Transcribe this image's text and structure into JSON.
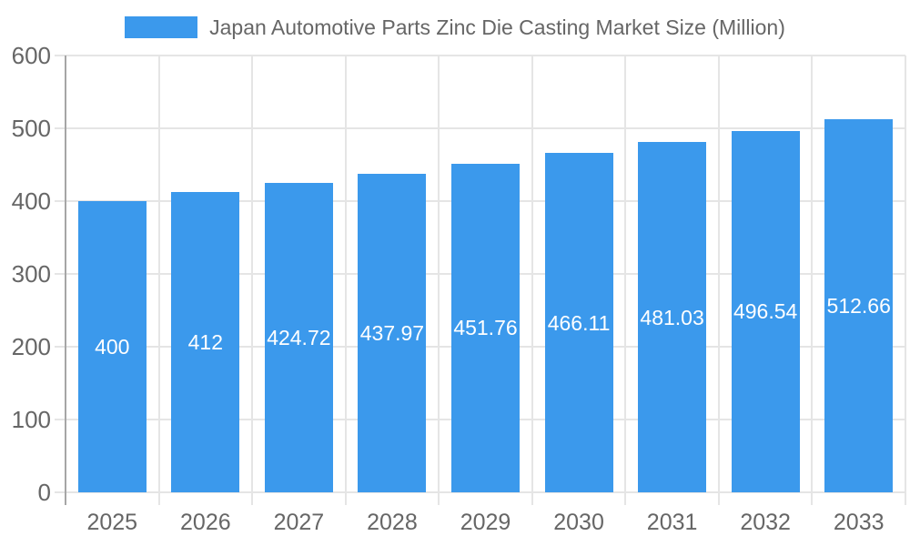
{
  "chart_data": {
    "type": "bar",
    "title": "Japan Automotive Parts Zinc Die Casting Market Size (Million)",
    "categories": [
      "2025",
      "2026",
      "2027",
      "2028",
      "2029",
      "2030",
      "2031",
      "2032",
      "2033"
    ],
    "values": [
      400,
      412,
      424.72,
      437.97,
      451.76,
      466.11,
      481.03,
      496.54,
      512.66
    ],
    "bar_value_labels": [
      "400",
      "412",
      "424.72",
      "437.97",
      "451.76",
      "466.11",
      "481.03",
      "496.54",
      "512.66"
    ],
    "xlabel": "",
    "ylabel": "",
    "ylim": [
      0,
      600
    ],
    "ytick_step": 100,
    "ytick_labels": [
      "0",
      "100",
      "200",
      "300",
      "400",
      "500",
      "600"
    ],
    "grid": "on",
    "legend_position": "top-center",
    "colors": {
      "bar": "#3B99EC",
      "bar_value_text": "#FFFFFF",
      "grid_line": "#E5E5E5",
      "axis_line": "#A6A6A6",
      "tick_text": "#666666",
      "title_text": "#666666"
    }
  }
}
